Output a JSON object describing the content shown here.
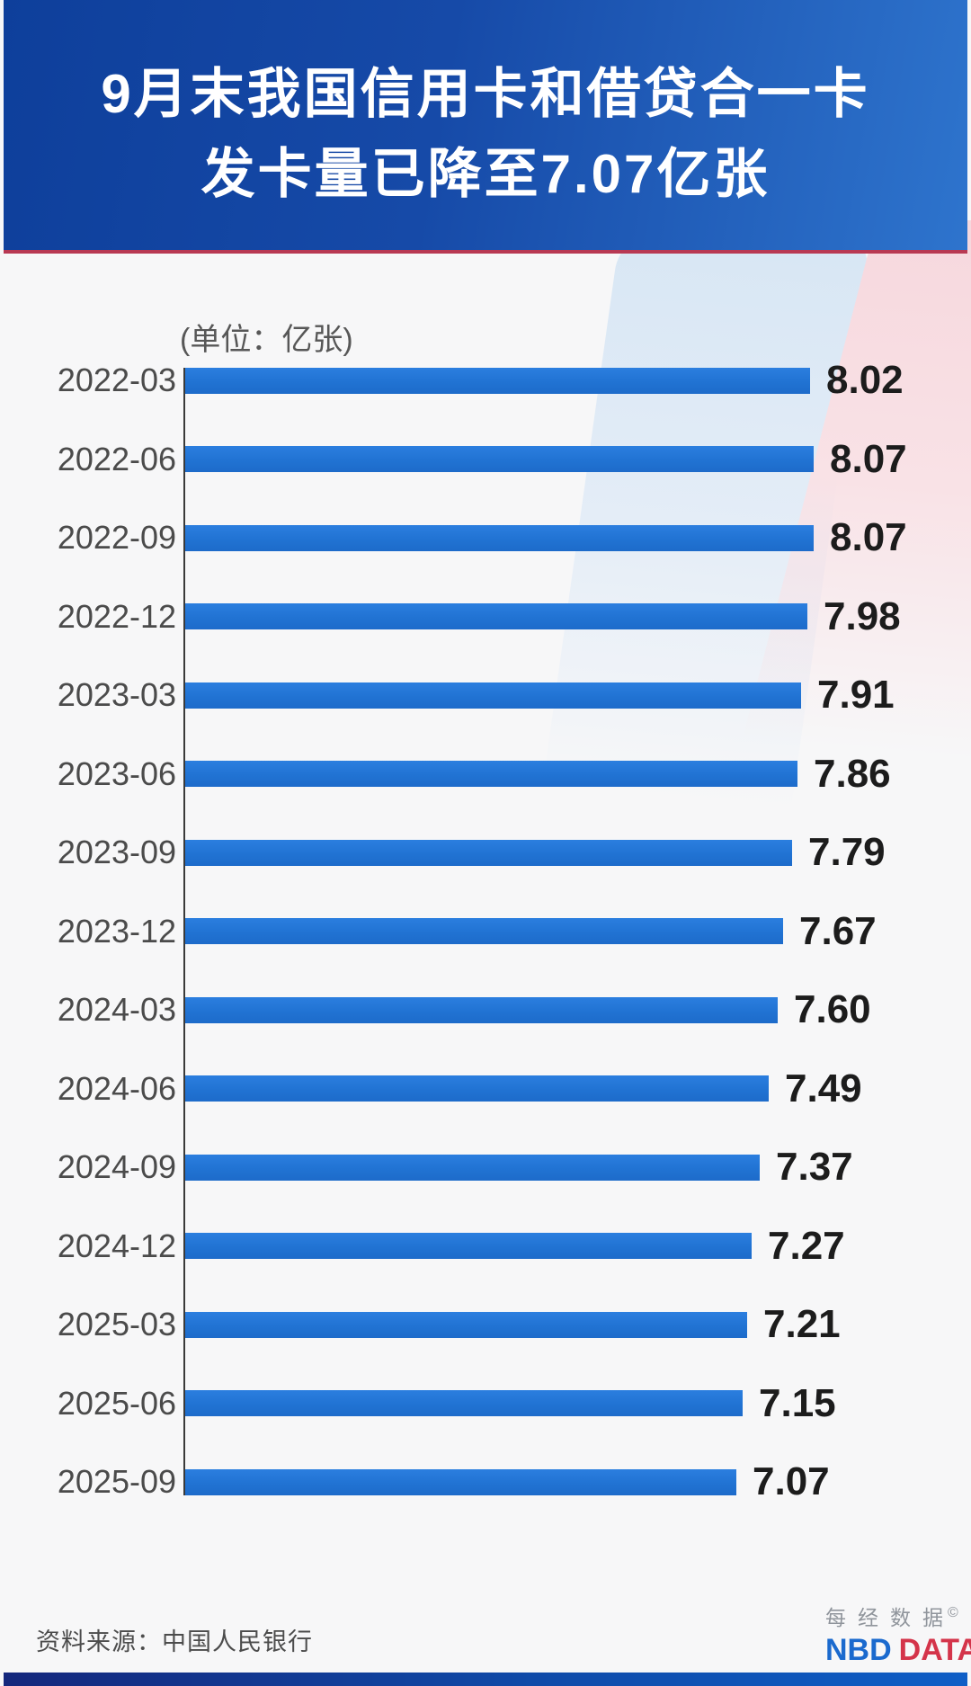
{
  "header": {
    "title_line1": "9月末我国信用卡和借贷合一卡",
    "title_line2": "发卡量已降至7.07亿张"
  },
  "chart": {
    "unit_label": "(单位：亿张)"
  },
  "chart_data": {
    "type": "bar",
    "orientation": "horizontal",
    "title": "9月末我国信用卡和借贷合一卡发卡量已降至7.07亿张",
    "unit": "亿张",
    "categories": [
      "2022-03",
      "2022-06",
      "2022-09",
      "2022-12",
      "2023-03",
      "2023-06",
      "2023-09",
      "2023-12",
      "2024-03",
      "2024-06",
      "2024-09",
      "2024-12",
      "2025-03",
      "2025-06",
      "2025-09"
    ],
    "values": [
      8.02,
      8.07,
      8.07,
      7.98,
      7.91,
      7.86,
      7.79,
      7.67,
      7.6,
      7.49,
      7.37,
      7.27,
      7.21,
      7.15,
      7.07
    ],
    "xlim": [
      0,
      8.3
    ],
    "grid": false,
    "legend": false,
    "bar_color": "#2173d3",
    "value_labels": [
      "8.02",
      "8.07",
      "8.07",
      "7.98",
      "7.91",
      "7.86",
      "7.79",
      "7.67",
      "7.60",
      "7.49",
      "7.37",
      "7.27",
      "7.21",
      "7.15",
      "7.07"
    ]
  },
  "footer": {
    "source": "资料来源：中国人民银行",
    "logo_cn": "每经数据",
    "logo_mark": "©",
    "logo_en_blue": "NBD",
    "logo_en_red": "DATA"
  },
  "colors": {
    "header_gradient_left": "#0e3f9b",
    "header_gradient_right": "#2e74cd",
    "header_red_line": "#b83953",
    "background": "#f7f7f8",
    "bar_blue": "#2173d3",
    "axis_line": "#3a3a3a",
    "category_text": "#4b4b4b",
    "value_text": "#1c1c1c",
    "watermark_blue": "#d7e6f4",
    "watermark_pink": "#f6d7dd",
    "logo_blue": "#1b6ace",
    "logo_red": "#d4344a",
    "bottom_strip_left": "#14277c",
    "bottom_strip_right": "#0f5ec6"
  }
}
